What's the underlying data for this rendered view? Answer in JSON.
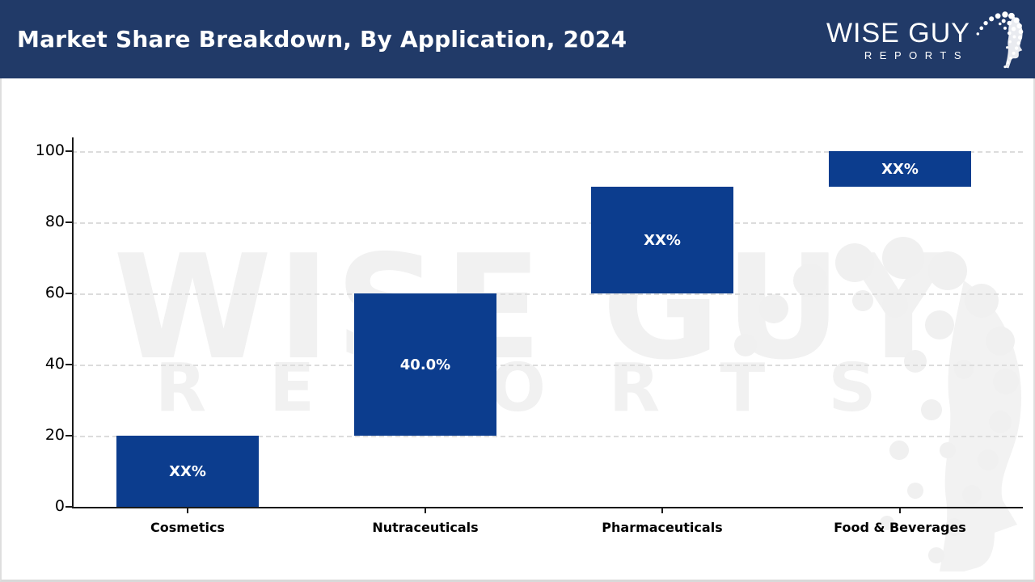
{
  "header": {
    "title": "Market Share Breakdown, By Application, 2024",
    "logo": {
      "line1": "WISE GUY",
      "line2": "REPORTS"
    },
    "bg_color": "#213A68"
  },
  "watermark": {
    "line1": "WISE GUY",
    "line2": "REPORTS"
  },
  "chart_data": {
    "type": "bar",
    "subtype": "floating-waterfall",
    "title": "Market Share Breakdown, By Application, 2024",
    "categories": [
      "Cosmetics",
      "Nutraceuticals",
      "Pharmaceuticals",
      "Food & Beverages"
    ],
    "series": [
      {
        "name": "Market Share",
        "segments": [
          {
            "category": "Cosmetics",
            "start": 0,
            "end": 20,
            "label": "XX%"
          },
          {
            "category": "Nutraceuticals",
            "start": 20,
            "end": 60,
            "label": "40.0%"
          },
          {
            "category": "Pharmaceuticals",
            "start": 60,
            "end": 90,
            "label": "XX%"
          },
          {
            "category": "Food & Beverages",
            "start": 90,
            "end": 100,
            "label": "XX%"
          }
        ]
      }
    ],
    "xlabel": "",
    "ylabel": "",
    "yticks": [
      0,
      20,
      40,
      60,
      80,
      100
    ],
    "ylim": [
      0,
      107
    ],
    "grid": "horizontal-dashed",
    "legend": "none",
    "bar_color": "#0C3D8E",
    "value_label_color": "#FFFFFF"
  }
}
